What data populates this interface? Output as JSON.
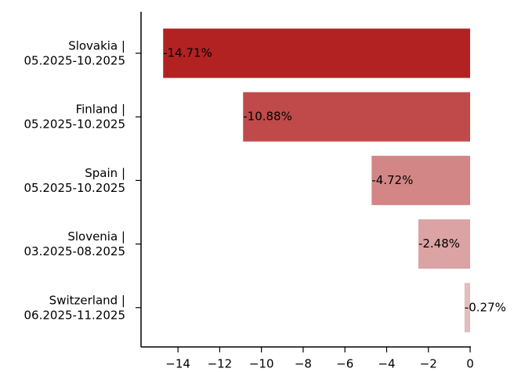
{
  "chart_data": {
    "type": "barh",
    "categories": [
      "Slovakia |\n05.2025-10.2025",
      "Finland |\n05.2025-10.2025",
      "Spain |\n05.2025-10.2025",
      "Slovenia |\n03.2025-08.2025",
      "Switzerland |\n06.2025-11.2025"
    ],
    "values": [
      -14.71,
      -10.88,
      -4.72,
      -2.48,
      -0.27
    ],
    "value_labels": [
      "-14.71%",
      "-10.88%",
      "-4.72%",
      "-2.48%",
      "-0.27%"
    ],
    "colors": [
      "#b22222",
      "#c04a4a",
      "#d38686",
      "#dba3a3",
      "#e3bcbc"
    ],
    "xlim": [
      -15.77,
      0
    ],
    "xticks": [
      {
        "value": -14,
        "label": "−14"
      },
      {
        "value": -12,
        "label": "−12"
      },
      {
        "value": -10,
        "label": "−10"
      },
      {
        "value": -8,
        "label": "−8"
      },
      {
        "value": -6,
        "label": "−6"
      },
      {
        "value": -4,
        "label": "−4"
      },
      {
        "value": -2,
        "label": "−2"
      },
      0
    ],
    "grid": false
  }
}
